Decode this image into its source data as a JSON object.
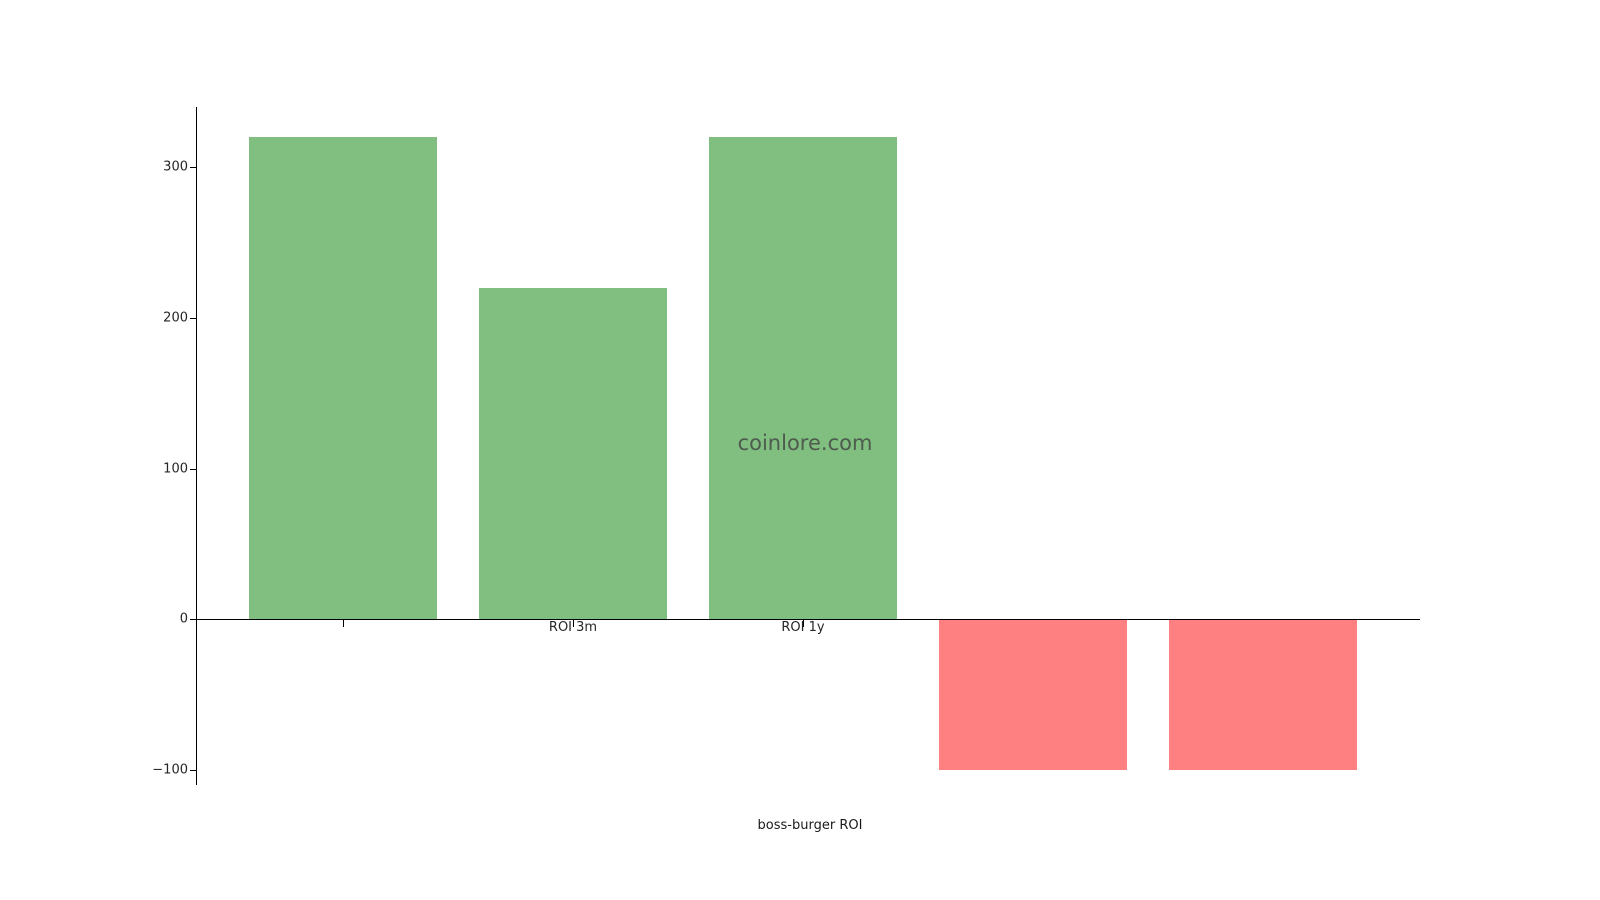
{
  "page": {
    "watermark": "coinlore.com",
    "xlabel": "boss-burger ROI"
  },
  "chart_data": {
    "type": "bar",
    "title": "",
    "xlabel": "boss-burger ROI",
    "ylabel": "",
    "categories": [
      "",
      "ROI 3m",
      "ROI 1y",
      "",
      ""
    ],
    "values": [
      320,
      220,
      320,
      -100,
      -100
    ],
    "yticks": [
      300,
      200,
      100,
      0,
      -100
    ],
    "ylim": [
      -110,
      340
    ],
    "grid": false,
    "legend": "none",
    "annotations": [
      "coinlore.com"
    ],
    "colors": {
      "positive_bar": "#80bf80",
      "negative_bar": "#ff8080",
      "axis": "#000000",
      "tick_text": "#262626"
    }
  }
}
